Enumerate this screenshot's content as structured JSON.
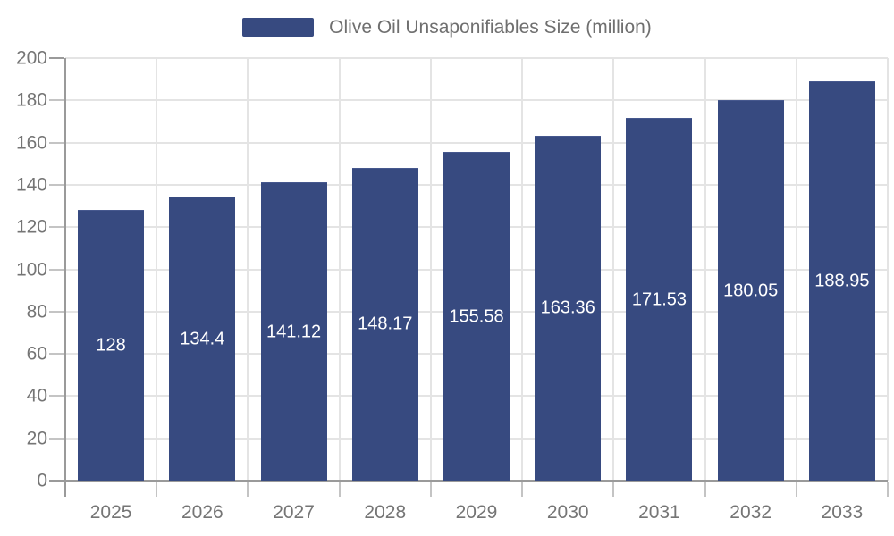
{
  "chart_data": {
    "type": "bar",
    "series_name": "Olive Oil Unsaponifiables Size (million)",
    "categories": [
      "2025",
      "2026",
      "2027",
      "2028",
      "2029",
      "2030",
      "2031",
      "2032",
      "2033"
    ],
    "values": [
      128,
      134.4,
      141.12,
      148.17,
      155.58,
      163.36,
      171.53,
      180.05,
      188.95
    ],
    "value_labels": [
      "128",
      "134.4",
      "141.12",
      "148.17",
      "155.58",
      "163.36",
      "171.53",
      "180.05",
      "188.95"
    ],
    "ylim": [
      0,
      200
    ],
    "ytick_step": 20,
    "grid": true,
    "legend_position": "top",
    "colors": {
      "bar": "#374A80",
      "bar_border": "#46588E",
      "bar_label": "#FFFFFF",
      "grid": "#E4E4E4",
      "axis": "#9A9A9A",
      "tick": "#C4C4C4",
      "axis_label": "#757575",
      "legend_text": "#6F6F6F",
      "background": "#FFFFFF"
    }
  }
}
